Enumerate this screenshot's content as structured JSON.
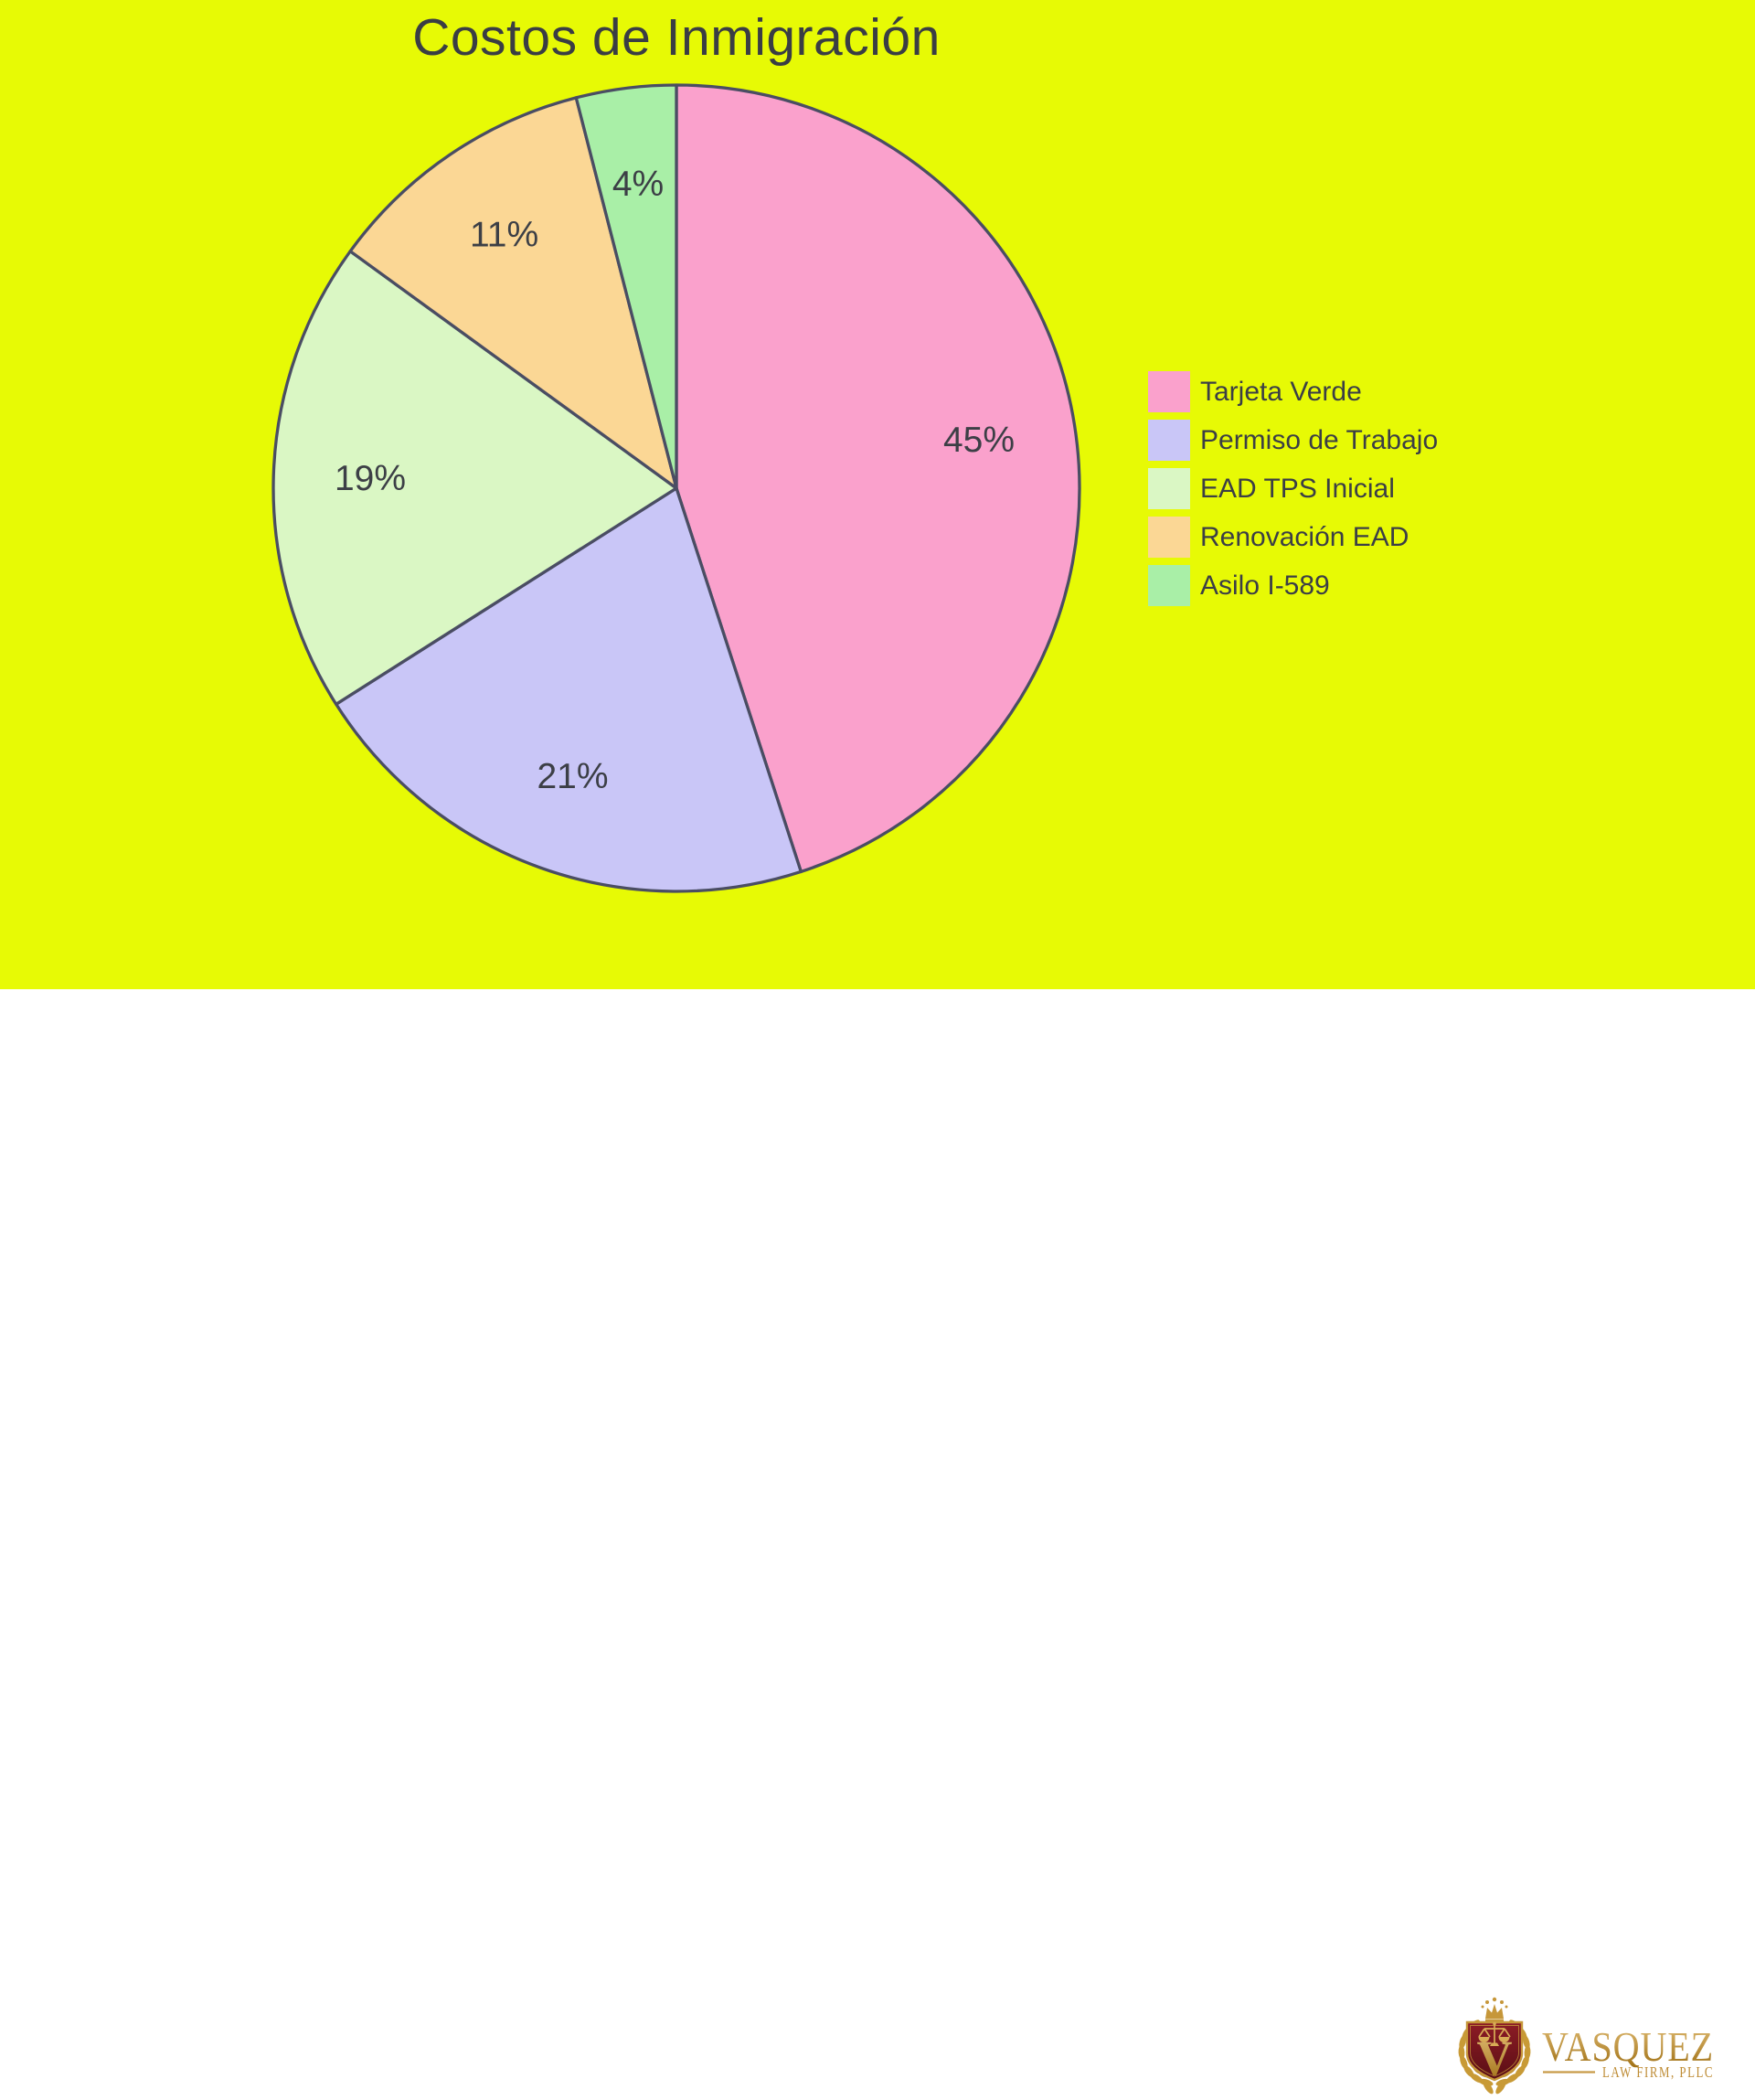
{
  "chart": {
    "title": "Costos de Inmigración"
  },
  "chart_data": {
    "type": "pie",
    "title": "Costos de Inmigración",
    "labels": [
      "Tarjeta Verde",
      "Permiso de Trabajo",
      "EAD TPS Inicial",
      "Renovación EAD",
      "Asilo I-589"
    ],
    "values": [
      45,
      21,
      19,
      11,
      4
    ],
    "percent_labels": [
      "45%",
      "21%",
      "19%",
      "11%",
      "4%"
    ],
    "colors": [
      "#FAA1CC",
      "#C9C6F7",
      "#DAF7C4",
      "#FBD795",
      "#A9EFA7"
    ],
    "start_angle": "top",
    "direction": "clockwise",
    "legend_position": "right",
    "label_distance": 0.76
  },
  "style": {
    "background": "#E7FA05",
    "footer_background": "#FFFFFF",
    "slice_stroke": "#4A4D63",
    "label_color": "#3C3F46",
    "title_color": "#3A3D44",
    "gold": "#C6973A",
    "gold_light": "#E0BC74",
    "gold_dark": "#9E6E12",
    "shield_red_light": "#8C1C25",
    "shield_red_dark": "#5A0E15"
  },
  "logo": {
    "wordmark": "VASQUEZ",
    "subtitle": "LAW FIRM, PLLC"
  }
}
